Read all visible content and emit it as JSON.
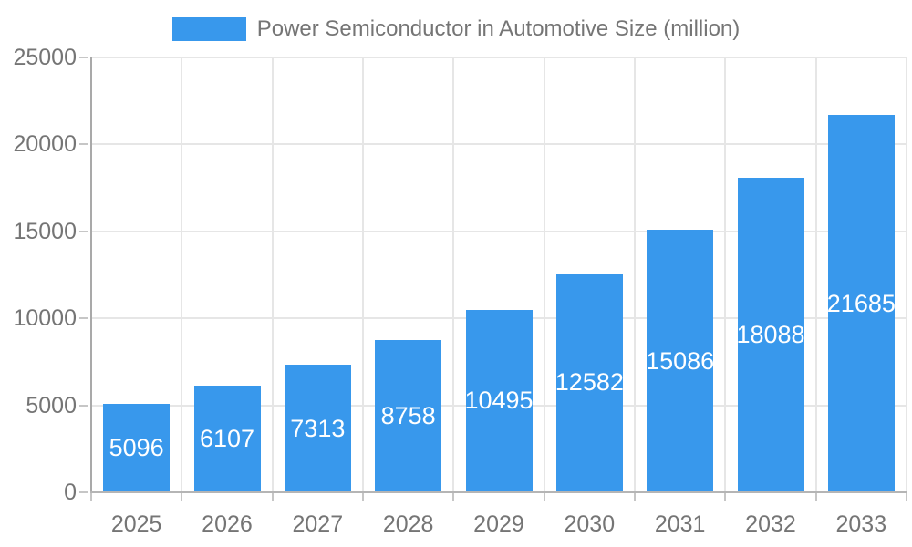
{
  "legend": {
    "label": "Power Semiconductor in Automotive Size (million)"
  },
  "chart_data": {
    "type": "bar",
    "title": "Power Semiconductor in Automotive Size (million)",
    "categories": [
      "2025",
      "2026",
      "2027",
      "2028",
      "2029",
      "2030",
      "2031",
      "2032",
      "2033"
    ],
    "series": [
      {
        "name": "Power Semiconductor in Automotive Size (million)",
        "values": [
          5096,
          6107,
          7313,
          8758,
          10495,
          12582,
          15086,
          18088,
          21685
        ]
      }
    ],
    "value_labels_shown": true,
    "xlabel": "",
    "ylabel": "",
    "ylim": [
      0,
      25000
    ],
    "yticks": [
      0,
      5000,
      10000,
      15000,
      20000,
      25000
    ],
    "grid": true,
    "legend_position": "top",
    "colors": {
      "bar": "#3898EC",
      "bar_label_text": "#FFFFFF",
      "axis_text": "#757575",
      "gridline": "#E6E6E6",
      "y_axis_line": "#A9A9A9",
      "x_axis_line": "#B5B5B5",
      "tick": "#C6C6C6",
      "background": "#FFFFFF"
    }
  }
}
